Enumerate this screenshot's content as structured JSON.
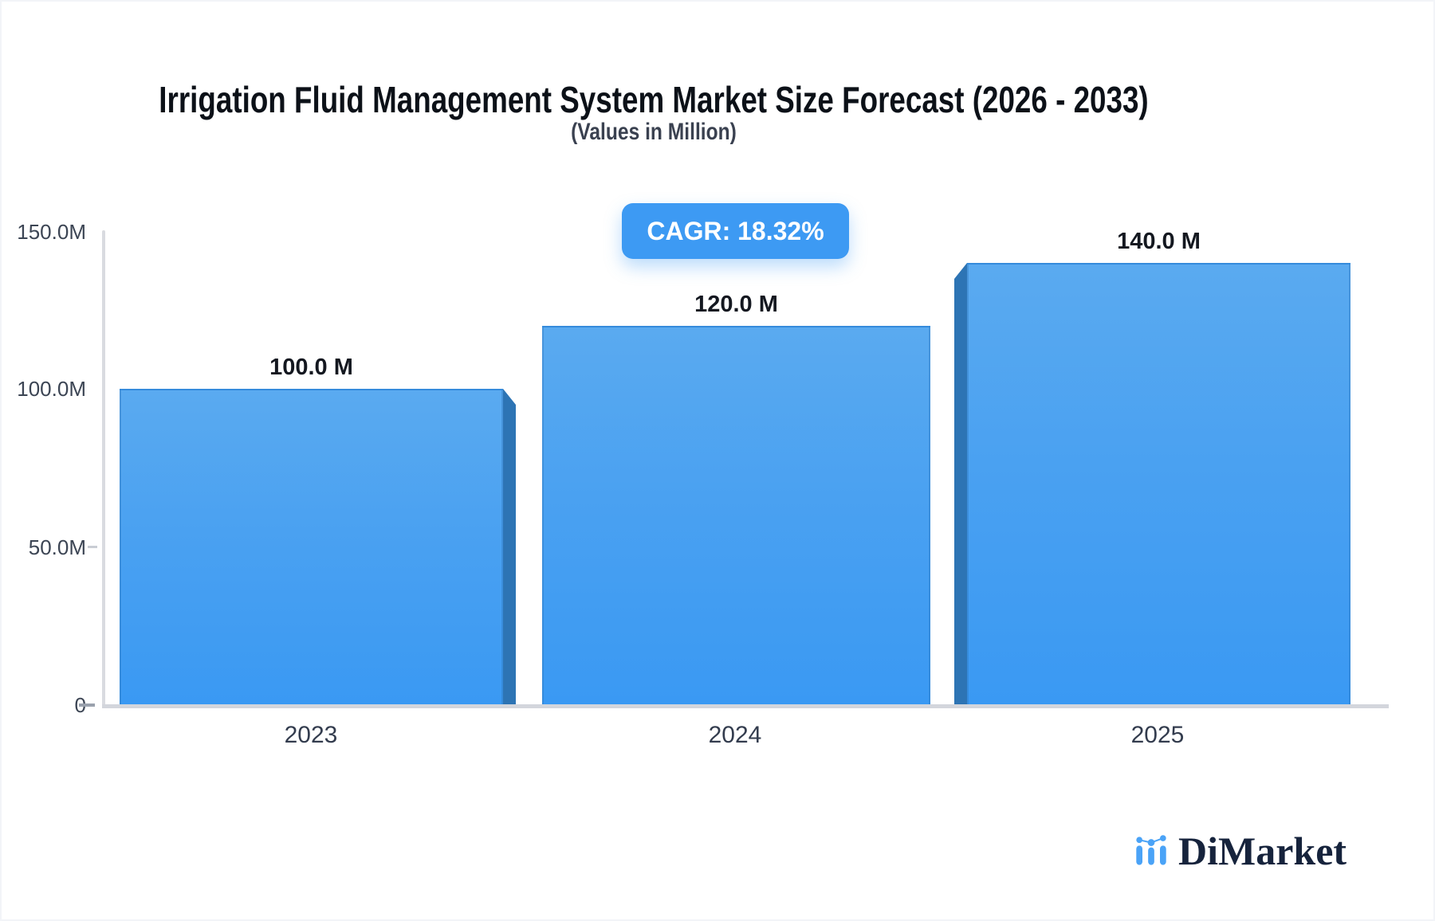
{
  "header": {
    "title": "Irrigation Fluid Management System Market Size Forecast (2026 - 2033)",
    "subtitle": "(Values in Million)",
    "cagr_label": "CAGR: 18.32%"
  },
  "chart_data": {
    "type": "bar",
    "title": "Irrigation Fluid Management System Market Size Forecast (2026 - 2033)",
    "subtitle": "(Values in Million)",
    "unit": "Million",
    "cagr_percent": 18.32,
    "categories": [
      "2023",
      "2024",
      "2025"
    ],
    "values": [
      100,
      120,
      140
    ],
    "value_labels": [
      "100.0 M",
      "120.0 M",
      "140.0 M"
    ],
    "y_ticks": [
      "150.0M",
      "100.0M",
      "50.0M",
      "0"
    ],
    "ylim": [
      0,
      150
    ],
    "grid": "off",
    "legend": "none",
    "bar_color_top": "#5aaaf0",
    "bar_color_bottom": "#3a99f3",
    "bar_side_color": "#2d74b4"
  },
  "branding": {
    "logo_text": "DiMarket",
    "logo_icon": "bar-chart-icon",
    "logo_text_color": "#16233c",
    "logo_icon_color": "#4aa3f7"
  },
  "colors": {
    "accent_blue": "#3d9af3",
    "axis_gray": "#d9dbe0",
    "text_dark": "#0c1118",
    "text_slate": "#3c4554",
    "background": "#ffffff"
  }
}
